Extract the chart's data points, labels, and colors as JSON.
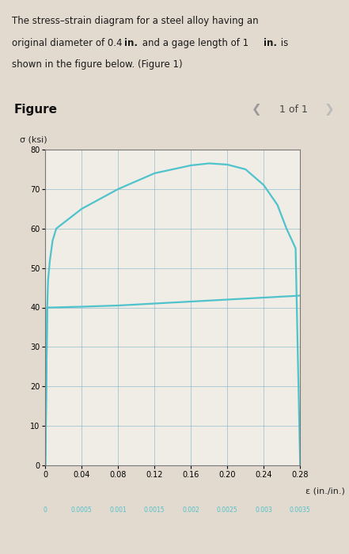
{
  "header_bg": "#cdd6cc",
  "body_bg": "#e2d9cf",
  "ylabel": "σ (ksi)",
  "xlabel": "ε (in./in.)",
  "ylim": [
    0,
    80
  ],
  "xlim": [
    0,
    0.28
  ],
  "yticks": [
    0,
    10,
    20,
    30,
    40,
    50,
    60,
    70,
    80
  ],
  "xticks_top": [
    0,
    0.04,
    0.08,
    0.12,
    0.16,
    0.2,
    0.24,
    0.28
  ],
  "xticks_bottom_labels": [
    "0",
    "0.0005",
    "0.001",
    "0.0015",
    "0.002",
    "0.0025",
    "0.003",
    "0.0035"
  ],
  "line_color": "#4fc3cc",
  "grid_color": "#7ab0c8",
  "curve1_x": [
    0.0,
    0.0005,
    0.001,
    0.0015,
    0.002,
    0.003,
    0.005,
    0.008,
    0.012,
    0.04,
    0.08,
    0.12,
    0.16,
    0.18,
    0.2,
    0.22,
    0.24,
    0.255,
    0.265,
    0.275,
    0.28
  ],
  "curve1_y": [
    0,
    10,
    20,
    30,
    40,
    47,
    52,
    57,
    60,
    65,
    70,
    74,
    76,
    76.5,
    76.2,
    75,
    71,
    66,
    60,
    55,
    0
  ],
  "curve2_x": [
    0.0,
    0.0005,
    0.001,
    0.0015,
    0.002,
    0.003,
    0.008,
    0.04,
    0.08,
    0.12,
    0.16,
    0.2,
    0.24,
    0.28
  ],
  "curve2_y": [
    0,
    10,
    20,
    30,
    40,
    40,
    40,
    40.2,
    40.5,
    41,
    41.5,
    42,
    42.5,
    43
  ],
  "plot_bg": "#f0ece6",
  "fig_label_fontsize": 11,
  "page_label": "1 of 1"
}
